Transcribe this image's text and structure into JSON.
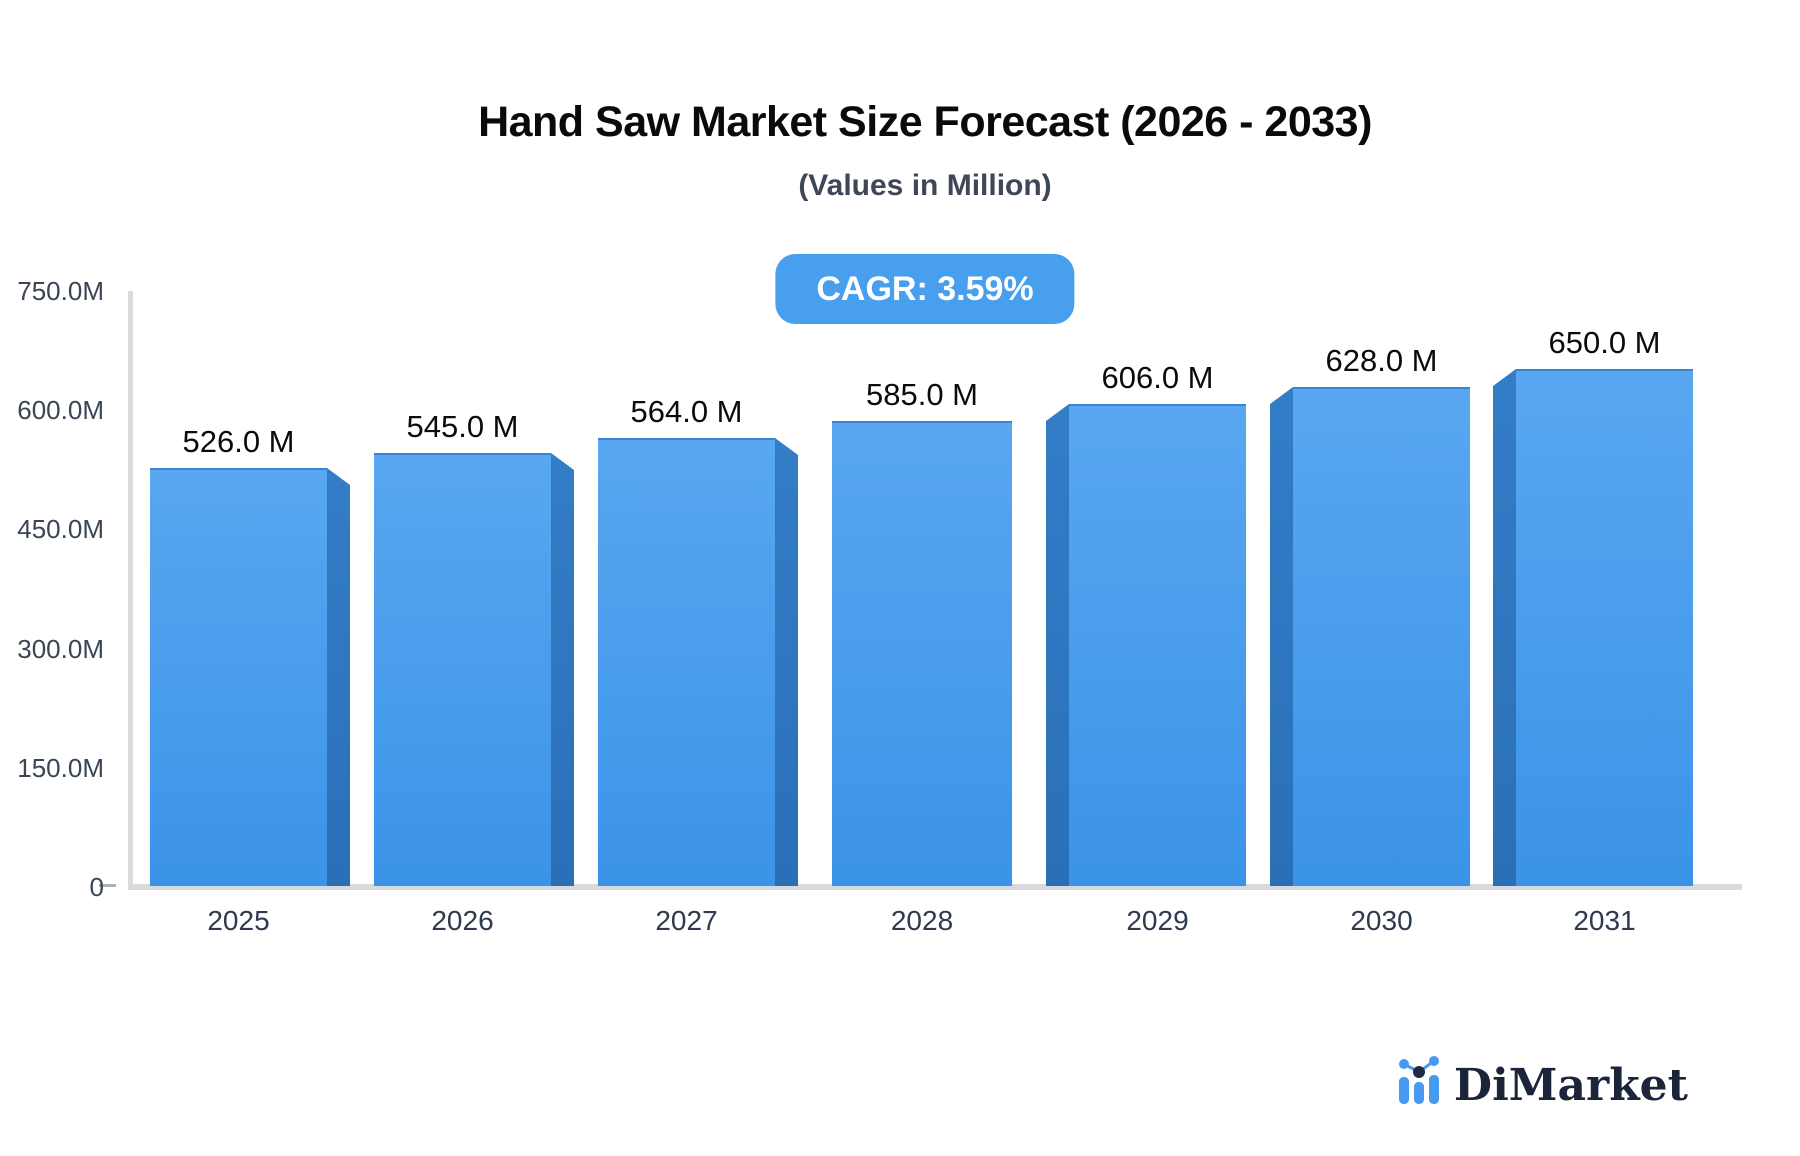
{
  "chart_data": {
    "type": "bar",
    "title": "Hand Saw Market Size Forecast (2026 - 2033)",
    "subtitle": "(Values in Million)",
    "cagr_badge": "CAGR: 3.59%",
    "categories": [
      "2025",
      "2026",
      "2027",
      "2028",
      "2029",
      "2030",
      "2031"
    ],
    "values": [
      526,
      545,
      564,
      585,
      606,
      628,
      650
    ],
    "value_labels": [
      "526.0 M",
      "545.0 M",
      "564.0 M",
      "585.0 M",
      "606.0 M",
      "628.0 M",
      "650.0 M"
    ],
    "y_tick_labels": [
      "750.0M",
      "600.0M",
      "450.0M",
      "300.0M",
      "150.0M",
      "0"
    ],
    "ylim": [
      0,
      750
    ],
    "xlabel": "",
    "ylabel": "",
    "grid": "off",
    "legend": "none",
    "style": "3d-perspective-bars",
    "colors": {
      "bar_top": "#58a7f0",
      "bar_bottom": "#3b93e8",
      "bar_edge": "#3a85d1",
      "side_top": "#337dc6",
      "side_bottom": "#2a70b8",
      "badge": "#479fed",
      "axis": "#d8dade"
    }
  },
  "branding": {
    "name": "DiMarket",
    "icon": "dimarket-logo-icon",
    "icon_blue": "#4899f0",
    "icon_navy": "#1e2a47"
  }
}
